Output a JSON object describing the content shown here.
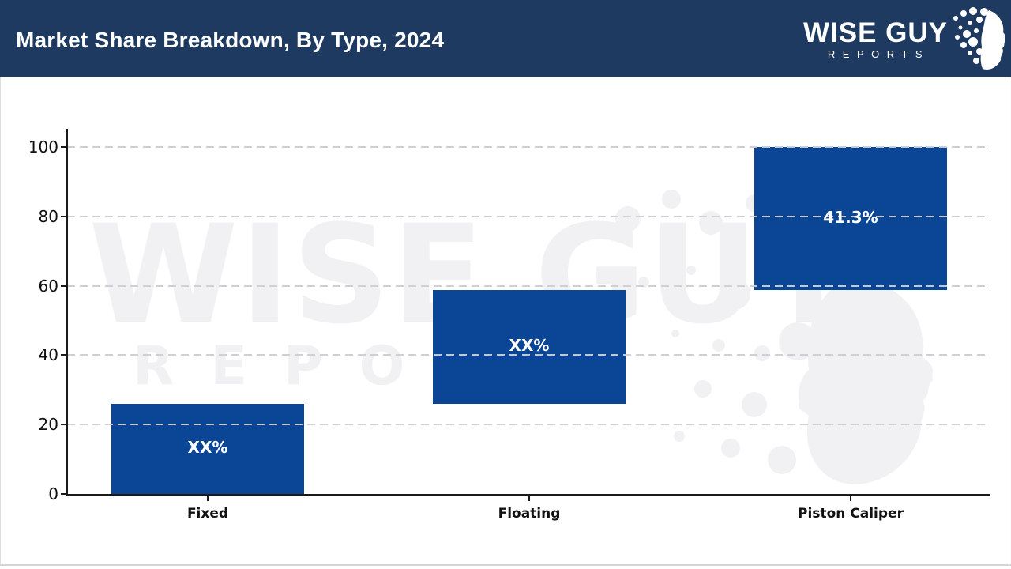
{
  "header": {
    "title": "Market Share Breakdown, By Type, 2024",
    "background": "#1f3a60",
    "logo": {
      "line1": "WISE GUY",
      "line2": "REPORTS"
    }
  },
  "watermark": {
    "line1": "WISE GUY",
    "line2": "REPORTS",
    "color": "#f1f1f3"
  },
  "chart_data": {
    "type": "bar",
    "subtype": "floating-waterfall",
    "title": "Market Share Breakdown, By Type, 2024",
    "categories": [
      "Fixed",
      "Floating",
      "Piston Caliper"
    ],
    "bars": [
      {
        "category": "Fixed",
        "start": 0,
        "end": 26,
        "label": "XX%"
      },
      {
        "category": "Floating",
        "start": 26,
        "end": 58.7,
        "label": "XX%"
      },
      {
        "category": "Piston Caliper",
        "start": 58.7,
        "end": 100,
        "label": "41.3%"
      }
    ],
    "y_ticks": [
      0,
      20,
      40,
      60,
      80,
      100
    ],
    "ylim": [
      0,
      100
    ],
    "xlabel": "",
    "ylabel": "",
    "grid": "horizontal-dashed",
    "legend": "none",
    "bar_color": "#0b4596",
    "bar_label_color": "#ffffff",
    "axis_color": "#1a1a1a"
  }
}
